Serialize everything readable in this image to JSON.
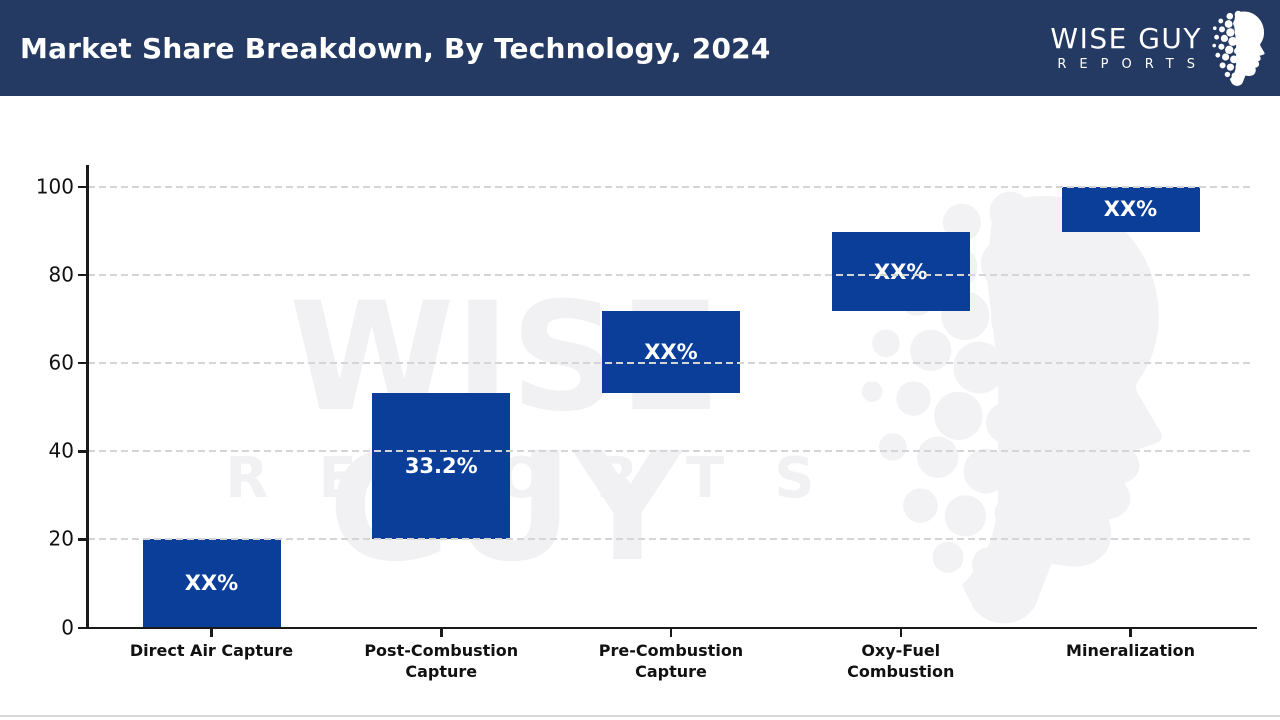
{
  "header": {
    "title": "Market Share Breakdown, By Technology, 2024",
    "logo": {
      "name": "WISE GUY",
      "subname": "REPORTS"
    }
  },
  "watermark": {
    "line1": "WISE GUY",
    "line2": "REPORTS"
  },
  "colors": {
    "header_bg": "#243a63",
    "bar": "#0a3e99",
    "bar_label": "#ffffff",
    "axis": "#1a1a1a",
    "grid": "#d5d5d5",
    "watermark": "#f1f1f4",
    "watermark_face": "#f2f2f5"
  },
  "chart_data": {
    "type": "bar",
    "subtype": "waterfall-stacked-percentage",
    "title": "Market Share Breakdown, By Technology, 2024",
    "xlabel": "",
    "ylabel": "",
    "unit": "%",
    "ylim": [
      0,
      105
    ],
    "y_ticks": [
      0,
      20,
      40,
      60,
      80,
      100
    ],
    "grid": "horizontal-dashed",
    "legend": "none",
    "categories": [
      "Direct Air Capture",
      "Post-Combustion\nCapture",
      "Pre-Combustion\nCapture",
      "Oxy-Fuel\nCombustion",
      "Mineralization"
    ],
    "segments": [
      {
        "category": "Direct Air Capture",
        "start": 0,
        "end": 20,
        "value_label": "XX%"
      },
      {
        "category": "Post-Combustion Capture",
        "start": 20,
        "end": 53.2,
        "value": 33.2,
        "value_label": "33.2%"
      },
      {
        "category": "Pre-Combustion Capture",
        "start": 53.2,
        "end": 71.7,
        "value_label": "XX%"
      },
      {
        "category": "Oxy-Fuel Combustion",
        "start": 71.7,
        "end": 89.7,
        "value_label": "XX%"
      },
      {
        "category": "Mineralization",
        "start": 89.7,
        "end": 100,
        "value_label": "XX%"
      }
    ]
  }
}
